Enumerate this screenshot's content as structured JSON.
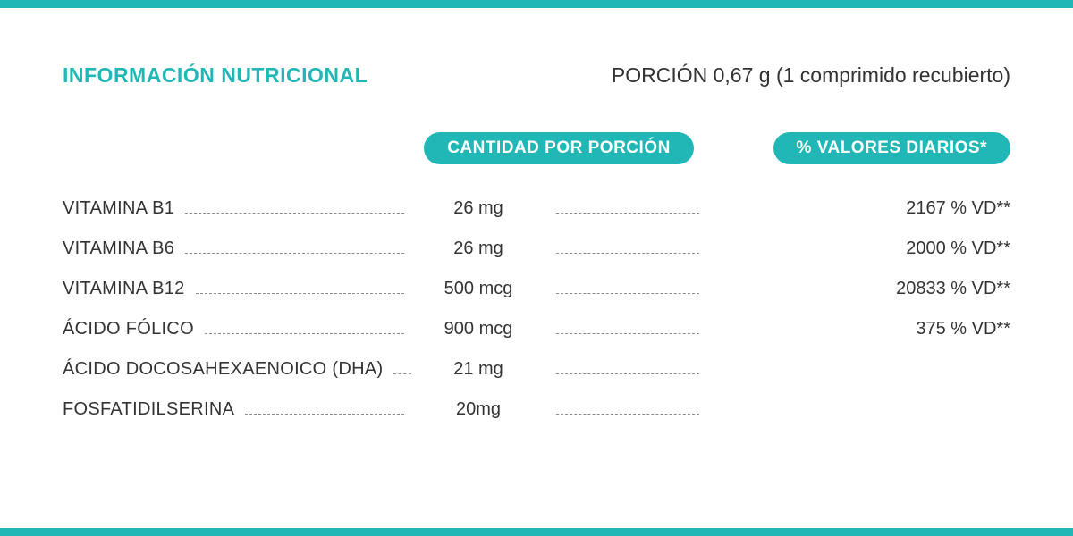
{
  "colors": {
    "accent": "#21b7b6",
    "text": "#333333",
    "dash": "#8a8a8a",
    "background": "#ffffff"
  },
  "typography": {
    "title_fontsize": 23,
    "portion_fontsize": 23,
    "pill_fontsize": 19,
    "row_fontsize": 20,
    "font_family": "Arial"
  },
  "layout": {
    "border_thickness": 9,
    "name_col_width": 390,
    "amount_col_width": 150,
    "mid_col_width": 180,
    "row_gap": 22
  },
  "header": {
    "title": "INFORMACIÓN NUTRICIONAL",
    "portion": "PORCIÓN 0,67 g (1 comprimido recubierto)"
  },
  "columns": {
    "amount": "CANTIDAD POR PORCIÓN",
    "daily_value": "% VALORES DIARIOS*"
  },
  "rows": [
    {
      "name": "VITAMINA B1",
      "amount": "26 mg",
      "dv": "2167 % VD**"
    },
    {
      "name": "VITAMINA B6",
      "amount": "26 mg",
      "dv": "2000 % VD**"
    },
    {
      "name": "VITAMINA B12",
      "amount": "500 mcg",
      "dv": "20833 % VD**"
    },
    {
      "name": "ÁCIDO FÓLICO",
      "amount": "900 mcg",
      "dv": "375 % VD**"
    },
    {
      "name": "ÁCIDO DOCOSAHEXAENOICO (DHA)",
      "amount": "21 mg",
      "dv": ""
    },
    {
      "name": "FOSFATIDILSERINA",
      "amount": "20mg",
      "dv": ""
    }
  ]
}
